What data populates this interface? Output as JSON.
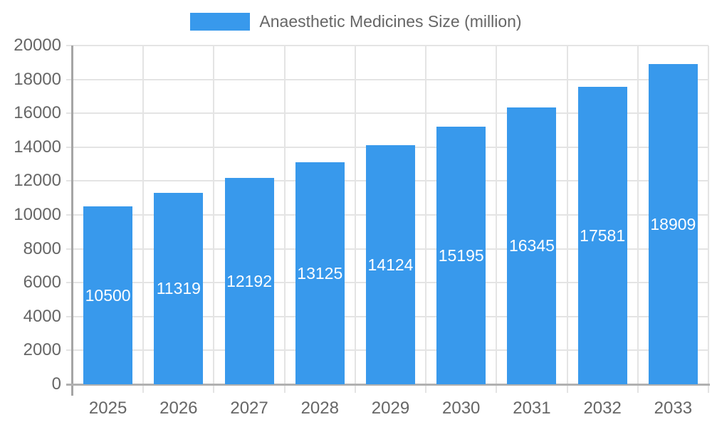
{
  "chart_data": {
    "type": "bar",
    "title": "",
    "legend": {
      "label": "Anaesthetic Medicines Size (million)",
      "position": "top"
    },
    "categories": [
      "2025",
      "2026",
      "2027",
      "2028",
      "2029",
      "2030",
      "2031",
      "2032",
      "2033"
    ],
    "series": [
      {
        "name": "Anaesthetic Medicines Size (million)",
        "values": [
          10500,
          11319,
          12192,
          13125,
          14124,
          15195,
          16345,
          17581,
          18909
        ]
      }
    ],
    "value_labels_shown": true,
    "xlabel": "",
    "ylabel": "",
    "ylim": [
      0,
      20000
    ],
    "ytick_step": 2000,
    "yticks": [
      "0",
      "2000",
      "4000",
      "6000",
      "8000",
      "10000",
      "12000",
      "14000",
      "16000",
      "18000",
      "20000"
    ],
    "grid": true
  },
  "colors": {
    "bar": "#3899ec",
    "grid": "#e4e4e4",
    "y_axis_line": "#a5a5a5",
    "x_axis_line": "#b0b0b0",
    "tick_text": "#666666",
    "legend_text": "#666666",
    "value_text": "#ffffff",
    "background": "#ffffff"
  }
}
